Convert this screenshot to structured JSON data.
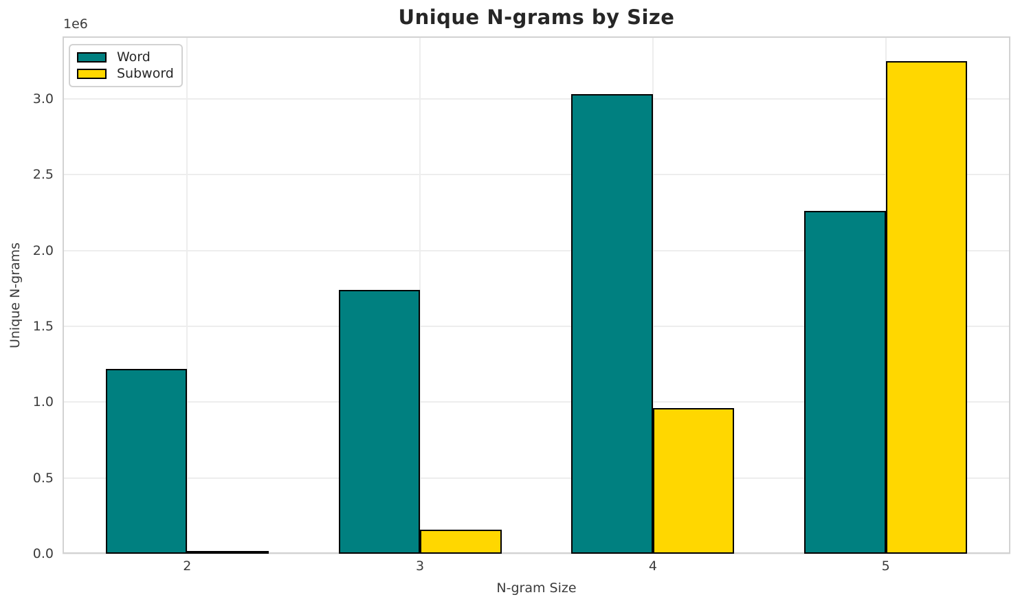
{
  "figure": {
    "title": "Unique N-grams by Size",
    "axis_offset_label": "1e6",
    "xlabel": "N-gram Size",
    "ylabel": "Unique N-grams"
  },
  "chart_data": {
    "type": "bar",
    "title": "Unique N-grams by Size",
    "xlabel": "N-gram Size",
    "ylabel": "Unique N-grams",
    "categories": [
      "2",
      "3",
      "4",
      "5"
    ],
    "series": [
      {
        "name": "Word",
        "color": "#008080",
        "values": [
          1220000,
          1740000,
          3030000,
          2260000
        ]
      },
      {
        "name": "Subword",
        "color": "#FFD700",
        "values": [
          20000,
          160000,
          960000,
          3250000
        ]
      }
    ],
    "bar_width": 0.35,
    "bar_edge_color": "#000000",
    "ylim": [
      0,
      3412500
    ],
    "yticks": [
      0,
      500000,
      1000000,
      1500000,
      2000000,
      2500000,
      3000000
    ],
    "ytick_labels": [
      "0.0",
      "0.5",
      "1.0",
      "1.5",
      "2.0",
      "2.5",
      "3.0"
    ],
    "y_offset_text": "1e6",
    "grid": true,
    "legend_position": "upper left",
    "colors": {
      "grid": "#ededed",
      "spine": "#d2d2d2",
      "tick_text": "#3b3b3b",
      "title_text": "#262626"
    }
  }
}
